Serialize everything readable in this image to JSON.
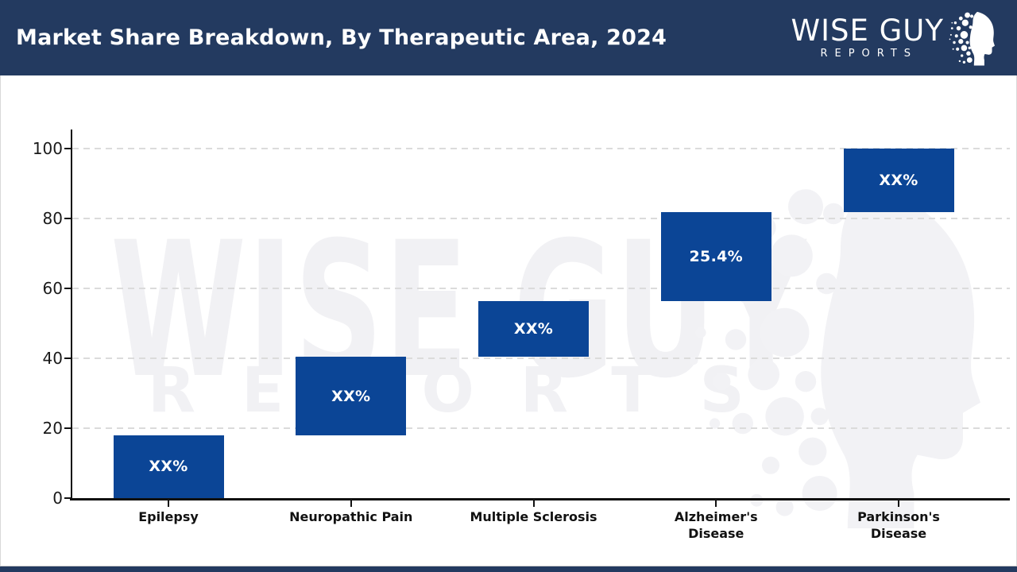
{
  "header": {
    "title": "Market Share Breakdown, By Therapeutic Area, 2024",
    "logo": {
      "line1": "WISE GUY",
      "line2": "REPORTS"
    }
  },
  "watermark": {
    "line1": "WISE GUY",
    "line2": "REPORTS"
  },
  "chart_data": {
    "type": "bar",
    "subtype": "waterfall",
    "title": "Market Share Breakdown, By Therapeutic Area, 2024",
    "categories": [
      "Epilepsy",
      "Neuropathic Pain",
      "Multiple Sclerosis",
      "Alzheimer's Disease",
      "Parkinson's Disease"
    ],
    "category_lines": [
      [
        "Epilepsy"
      ],
      [
        "Neuropathic Pain"
      ],
      [
        "Multiple Sclerosis"
      ],
      [
        "Alzheimer's",
        "Disease"
      ],
      [
        "Parkinson's",
        "Disease"
      ]
    ],
    "segments": [
      {
        "category": "Epilepsy",
        "start": 0,
        "end": 18,
        "value": 18,
        "label": "XX%"
      },
      {
        "category": "Neuropathic Pain",
        "start": 18,
        "end": 40.4,
        "value": 22.4,
        "label": "XX%"
      },
      {
        "category": "Multiple Sclerosis",
        "start": 40.4,
        "end": 56.4,
        "value": 16,
        "label": "XX%"
      },
      {
        "category": "Alzheimer's Disease",
        "start": 56.4,
        "end": 81.8,
        "value": 25.4,
        "label": "25.4%"
      },
      {
        "category": "Parkinson's Disease",
        "start": 81.8,
        "end": 100,
        "value": 18.2,
        "label": "XX%"
      }
    ],
    "xlabel": "",
    "ylabel": "",
    "ylim": [
      0,
      100
    ],
    "yticks": [
      0,
      20,
      40,
      60,
      80,
      100
    ],
    "grid": "horizontal-dashed",
    "legend": "none",
    "bar_color": "#0b4596"
  },
  "colors": {
    "header_bg": "#233a60",
    "footer_bg": "#233a60",
    "bar": "#0b4596",
    "bar_label_text": "#ffffff",
    "axis_text": "#111111",
    "gridline": "#dbdbdb",
    "watermark": "#f1f1f4",
    "background": "#ffffff"
  }
}
